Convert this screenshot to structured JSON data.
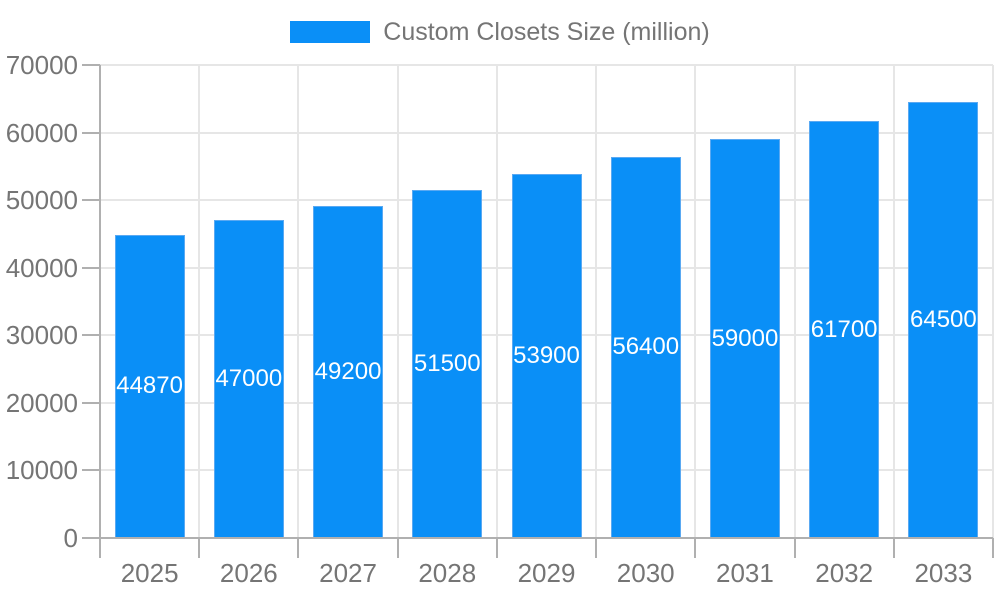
{
  "chart_data": {
    "type": "bar",
    "title": "",
    "legend": "Custom Closets Size (million)",
    "legend_position": "top",
    "categories": [
      "2025",
      "2026",
      "2027",
      "2028",
      "2029",
      "2030",
      "2031",
      "2032",
      "2033"
    ],
    "values": [
      44870,
      47000,
      49200,
      51500,
      53900,
      56400,
      59000,
      61700,
      64500
    ],
    "bar_labels": [
      "44870",
      "47000",
      "49200",
      "51500",
      "53900",
      "56400",
      "59000",
      "61700",
      "64500"
    ],
    "xlabel": "",
    "ylabel": "",
    "ylim": [
      0,
      70000
    ],
    "yticks": [
      0,
      10000,
      20000,
      30000,
      40000,
      50000,
      60000,
      70000
    ],
    "grid": true,
    "colors": {
      "bar": "#0a8ff7",
      "bar_edge": "#5aa9f2",
      "bar_label_text": "#ffffff",
      "axis_text": "#757575",
      "gridline": "#e6e6e6",
      "axis_line": "#b0b0b0",
      "background": "#ffffff"
    }
  }
}
